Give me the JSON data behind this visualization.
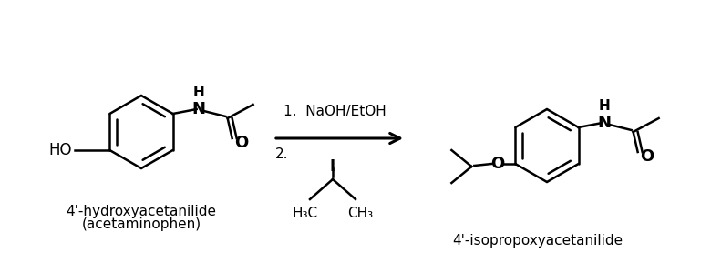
{
  "bg_color": "#ffffff",
  "label1": "4'-hydroxyacetanilide",
  "label1b": "(acetaminophen)",
  "label2": "4'-isopropoxyacetanilide",
  "reagent1": "1.  NaOH/EtOH",
  "reagent2": "2.",
  "font_size_labels": 11,
  "font_size_reagents": 11,
  "line_color": "#000000",
  "line_width": 1.8
}
